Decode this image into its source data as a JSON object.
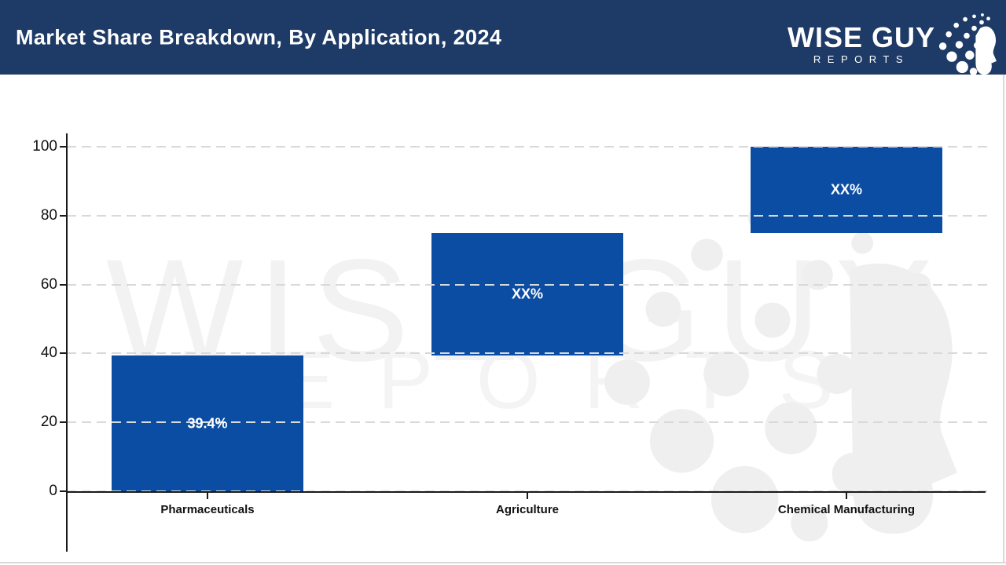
{
  "header": {
    "title": "Market Share Breakdown, By Application, 2024",
    "logo": {
      "line1": "WISE GUY",
      "line2": "REPORTS"
    }
  },
  "watermark": {
    "line1": "WISE GUY",
    "line2": "REPORTS"
  },
  "colors": {
    "header_bg": "#1e3a66",
    "bar": "#0b4da2",
    "grid": "#d9d9d9",
    "axis": "#1a1a1a",
    "tick_text": "#111111",
    "bar_label_text": "#ffffff"
  },
  "chart_data": {
    "type": "bar",
    "subtype": "waterfall",
    "title": "",
    "xlabel": "",
    "ylabel": "",
    "ylim": [
      0,
      100
    ],
    "yticks": [
      0,
      20,
      40,
      60,
      80,
      100
    ],
    "grid": "dashed-horizontal",
    "legend": "none",
    "categories": [
      "Pharmaceuticals",
      "Agriculture",
      "Chemical Manufacturing"
    ],
    "segments": [
      {
        "category": "Pharmaceuticals",
        "start": 0,
        "end": 39.4,
        "label": "39.4%"
      },
      {
        "category": "Agriculture",
        "start": 39.4,
        "end": 75,
        "label": "XX%"
      },
      {
        "category": "Chemical Manufacturing",
        "start": 75,
        "end": 100,
        "label": "XX%"
      }
    ]
  }
}
